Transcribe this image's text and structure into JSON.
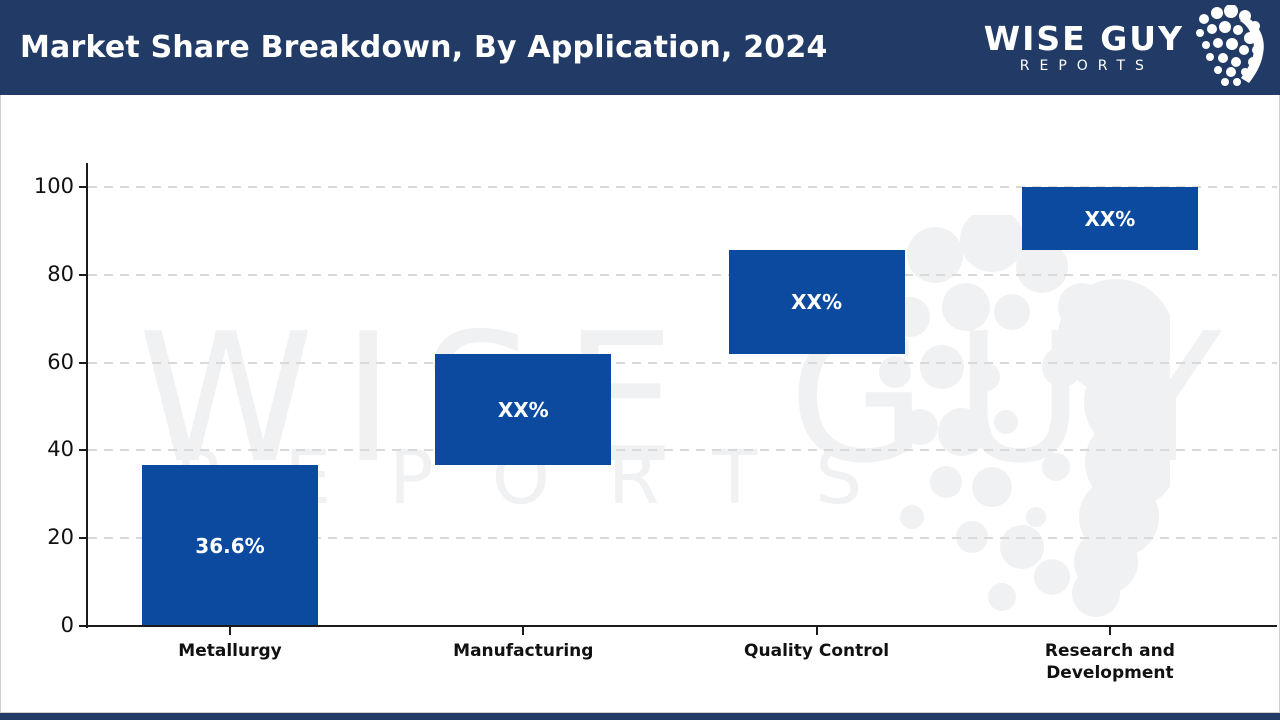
{
  "header": {
    "title": "Market Share Breakdown, By Application, 2024",
    "logo": {
      "line1": "WISE GUY",
      "line2": "REPORTS"
    }
  },
  "watermark": {
    "line1": "WISE GUY",
    "line2": "REPORTS"
  },
  "chart_data": {
    "type": "bar",
    "subtype": "floating-segment-waterfall",
    "title": "Market Share Breakdown, By Application, 2024",
    "categories": [
      "Metallurgy",
      "Manufacturing",
      "Quality Control",
      "Research and Development"
    ],
    "bars": [
      {
        "category": "Metallurgy",
        "start": 0,
        "end": 36.6,
        "label": "36.6%"
      },
      {
        "category": "Manufacturing",
        "start": 36.6,
        "end": 62.0,
        "label": "XX%"
      },
      {
        "category": "Quality Control",
        "start": 62.0,
        "end": 85.6,
        "label": "XX%"
      },
      {
        "category": "Research and Development",
        "start": 85.6,
        "end": 100,
        "label": "XX%"
      }
    ],
    "xlabel": "",
    "ylabel": "",
    "yticks": [
      0,
      20,
      40,
      60,
      80,
      100
    ],
    "ylim": [
      0,
      106
    ],
    "grid": "horizontal-dashed",
    "legend_position": "none"
  },
  "colors": {
    "header_bg": "#213a66",
    "footer_bg": "#213a66",
    "bar": "#0b4a9f",
    "bar_label": "#ffffff",
    "grid": "#d9d9d9",
    "axis": "#1a1a1a",
    "tick_text": "#111111",
    "watermark": "#f0f1f3"
  }
}
